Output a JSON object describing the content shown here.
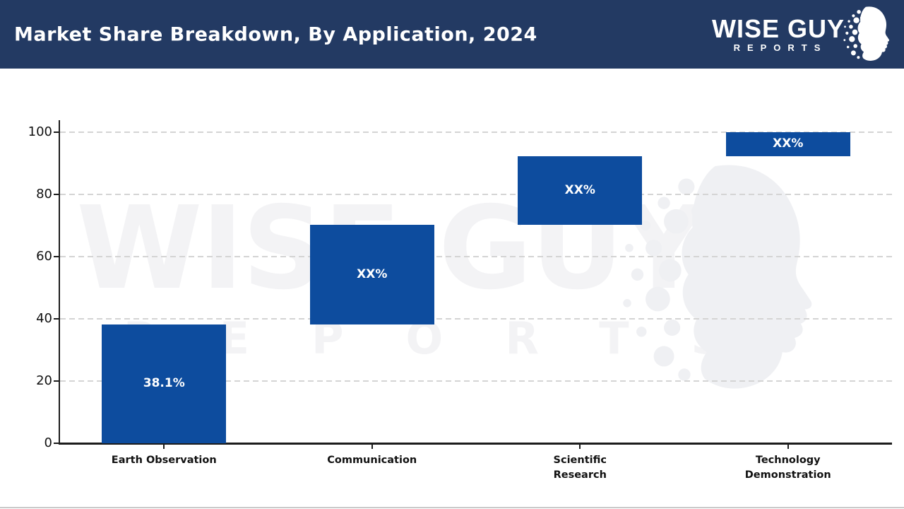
{
  "header": {
    "title": "Market Share Breakdown, By Application, 2024",
    "logo": {
      "line1": "WISE GUY",
      "line2": "REPORTS"
    },
    "bg_color": "#233a63"
  },
  "watermark": {
    "line1": "WISE GUY",
    "line2": "REPORTS"
  },
  "chart_data": {
    "type": "bar",
    "subtype": "floating-segment (waterfall-style market share)",
    "title": "Market Share Breakdown, By Application, 2024",
    "categories": [
      "Earth Observation",
      "Communication",
      "Scientific\nResearch",
      "Technology\nDemonstration"
    ],
    "segments": [
      {
        "category": "Earth Observation",
        "start": 0,
        "end": 38.1,
        "label": "38.1%"
      },
      {
        "category": "Communication",
        "start": 38.1,
        "end": 70.2,
        "label": "XX%"
      },
      {
        "category": "Scientific Research",
        "start": 70.2,
        "end": 92.3,
        "label": "XX%"
      },
      {
        "category": "Technology Demonstration",
        "start": 92.3,
        "end": 100,
        "label": "XX%"
      }
    ],
    "xlabel": "",
    "ylabel": "",
    "ylim": [
      0,
      100
    ],
    "yticks": [
      0,
      20,
      40,
      60,
      80,
      100
    ],
    "grid": "horizontal dashed",
    "legend": "none",
    "bar_color": "#0d4c9e"
  }
}
